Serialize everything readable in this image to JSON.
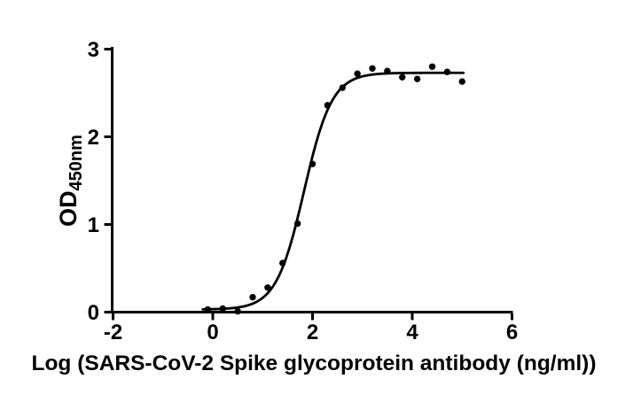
{
  "figure": {
    "background": "#ffffff",
    "axis_color": "#000000"
  },
  "chart_data": {
    "type": "scatter",
    "title": "",
    "xlabel": "Log (SARS-CoV-2 Spike glycoprotein antibody (ng/ml))",
    "ylabel_main": "OD",
    "ylabel_subscript": "450nm",
    "xlim": [
      -2,
      6
    ],
    "ylim": [
      0,
      3
    ],
    "x_ticks": [
      "-2",
      "0",
      "2",
      "4",
      "6"
    ],
    "x_tick_values": [
      -2,
      0,
      2,
      4,
      6
    ],
    "y_ticks": [
      "0",
      "1",
      "2",
      "3"
    ],
    "y_tick_values": [
      0,
      1,
      2,
      3
    ],
    "grid": false,
    "legend": false,
    "point_color": "#000000",
    "line_color": "#000000",
    "series": [
      {
        "name": "SARS-CoV-2 Spike glycoprotein antibody",
        "marker": "circle",
        "points": [
          [
            -0.1,
            0.03
          ],
          [
            0.2,
            0.04
          ],
          [
            0.5,
            0.01
          ],
          [
            0.8,
            0.17
          ],
          [
            1.1,
            0.28
          ],
          [
            1.4,
            0.56
          ],
          [
            1.7,
            1.01
          ],
          [
            2.0,
            1.69
          ],
          [
            2.3,
            2.36
          ],
          [
            2.6,
            2.56
          ],
          [
            2.9,
            2.72
          ],
          [
            3.2,
            2.78
          ],
          [
            3.5,
            2.75
          ],
          [
            3.8,
            2.68
          ],
          [
            4.1,
            2.66
          ],
          [
            4.4,
            2.8
          ],
          [
            4.7,
            2.74
          ],
          [
            5.0,
            2.63
          ]
        ]
      }
    ],
    "fit_curve": {
      "model": "4PL sigmoidal",
      "bottom": 0.03,
      "top": 2.73,
      "log_ec50": 1.83,
      "hill_slope": 1.55,
      "x_start": -0.2,
      "x_end": 5.03
    }
  }
}
